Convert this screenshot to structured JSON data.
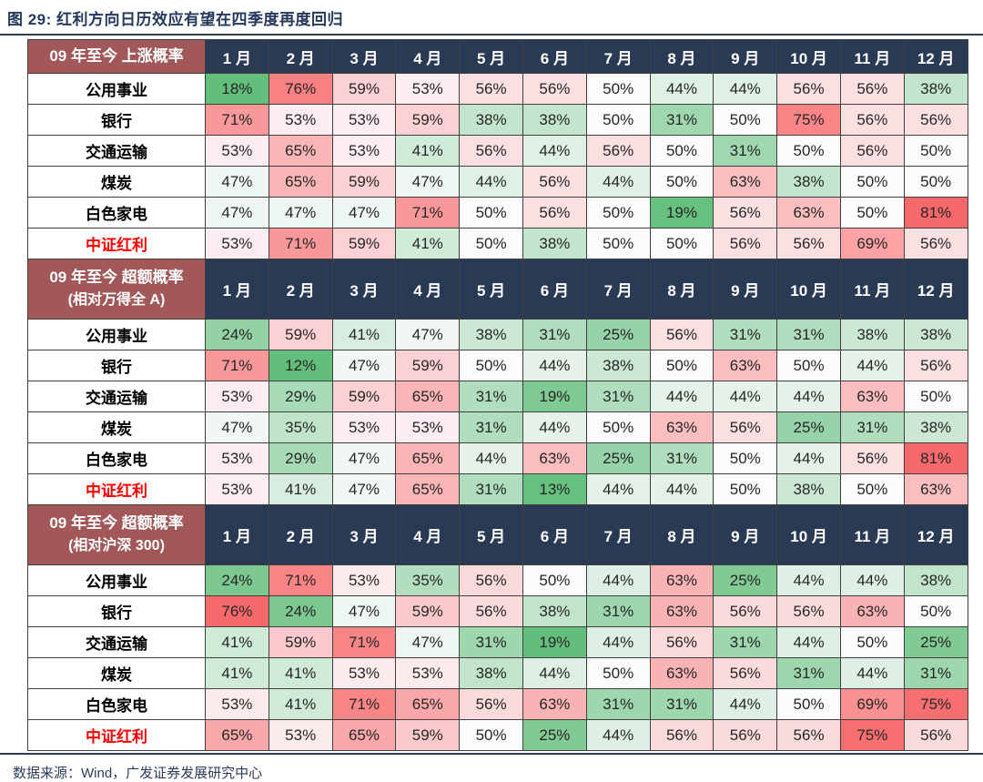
{
  "title": "图 29: 红利方向日历效应有望在四季度再度回归",
  "footer": "数据来源：Wind，广发证券发展研究中心",
  "colors": {
    "section_header_bg": "#A25858",
    "month_header_bg": "#2B3A54",
    "highlight_text": "#FE0000",
    "title_text": "#24395B",
    "rule": "#2F3E57",
    "footer_text": "#2C3C58",
    "grid_border": "#3F3F3F",
    "heat_green": "#63BE7B",
    "heat_mid": "#FCFCFE",
    "heat_red": "#F8696B"
  },
  "chart_data": {
    "type": "heatmap",
    "unit": "%",
    "color_scale": "green(low) -> white(50%) -> red(high), scaled to each section's min/max",
    "months": [
      "1 月",
      "2 月",
      "3 月",
      "4 月",
      "5 月",
      "6 月",
      "7 月",
      "8 月",
      "9 月",
      "10 月",
      "11 月",
      "12 月"
    ],
    "sections": [
      {
        "title": "09 年至今 上涨概率",
        "subtitle": "",
        "rows": [
          {
            "label": "公用事业",
            "highlight": false,
            "values": [
              18,
              76,
              59,
              53,
              56,
              56,
              50,
              44,
              44,
              56,
              56,
              38
            ]
          },
          {
            "label": "银行",
            "highlight": false,
            "values": [
              71,
              53,
              53,
              59,
              38,
              38,
              50,
              31,
              50,
              75,
              56,
              56
            ]
          },
          {
            "label": "交通运输",
            "highlight": false,
            "values": [
              53,
              65,
              53,
              41,
              56,
              44,
              56,
              50,
              31,
              50,
              56,
              50
            ]
          },
          {
            "label": "煤炭",
            "highlight": false,
            "values": [
              47,
              65,
              59,
              47,
              44,
              56,
              44,
              50,
              63,
              38,
              50,
              50
            ]
          },
          {
            "label": "白色家电",
            "highlight": false,
            "values": [
              47,
              47,
              47,
              71,
              50,
              56,
              50,
              19,
              56,
              63,
              50,
              81
            ]
          },
          {
            "label": "中证红利",
            "highlight": true,
            "values": [
              53,
              71,
              59,
              41,
              50,
              38,
              50,
              50,
              56,
              56,
              69,
              56
            ]
          }
        ]
      },
      {
        "title": "09 年至今 超额概率",
        "subtitle": "(相对万得全 A)",
        "rows": [
          {
            "label": "公用事业",
            "highlight": false,
            "values": [
              24,
              59,
              41,
              47,
              38,
              31,
              25,
              56,
              31,
              31,
              38,
              38
            ]
          },
          {
            "label": "银行",
            "highlight": false,
            "values": [
              71,
              12,
              47,
              59,
              50,
              44,
              38,
              50,
              63,
              50,
              44,
              56
            ]
          },
          {
            "label": "交通运输",
            "highlight": false,
            "values": [
              53,
              29,
              59,
              65,
              31,
              19,
              31,
              44,
              44,
              44,
              63,
              50
            ]
          },
          {
            "label": "煤炭",
            "highlight": false,
            "values": [
              47,
              35,
              53,
              53,
              31,
              44,
              50,
              63,
              56,
              25,
              31,
              38
            ]
          },
          {
            "label": "白色家电",
            "highlight": false,
            "values": [
              53,
              29,
              47,
              65,
              44,
              63,
              25,
              31,
              50,
              44,
              56,
              81
            ]
          },
          {
            "label": "中证红利",
            "highlight": true,
            "values": [
              53,
              41,
              47,
              65,
              31,
              13,
              44,
              44,
              50,
              38,
              50,
              63
            ]
          }
        ]
      },
      {
        "title": "09 年至今 超额概率",
        "subtitle": "(相对沪深 300)",
        "rows": [
          {
            "label": "公用事业",
            "highlight": false,
            "values": [
              24,
              71,
              53,
              35,
              56,
              50,
              44,
              63,
              25,
              44,
              44,
              38
            ]
          },
          {
            "label": "银行",
            "highlight": false,
            "values": [
              76,
              24,
              47,
              59,
              56,
              38,
              31,
              63,
              56,
              56,
              63,
              50
            ]
          },
          {
            "label": "交通运输",
            "highlight": false,
            "values": [
              41,
              59,
              71,
              47,
              31,
              19,
              44,
              56,
              31,
              44,
              50,
              25
            ]
          },
          {
            "label": "煤炭",
            "highlight": false,
            "values": [
              41,
              41,
              53,
              53,
              38,
              44,
              50,
              63,
              56,
              31,
              44,
              31
            ]
          },
          {
            "label": "白色家电",
            "highlight": false,
            "values": [
              53,
              41,
              71,
              65,
              56,
              63,
              31,
              31,
              44,
              50,
              69,
              75
            ]
          },
          {
            "label": "中证红利",
            "highlight": true,
            "values": [
              65,
              53,
              65,
              59,
              50,
              25,
              44,
              56,
              56,
              56,
              75,
              56
            ]
          }
        ]
      }
    ]
  }
}
